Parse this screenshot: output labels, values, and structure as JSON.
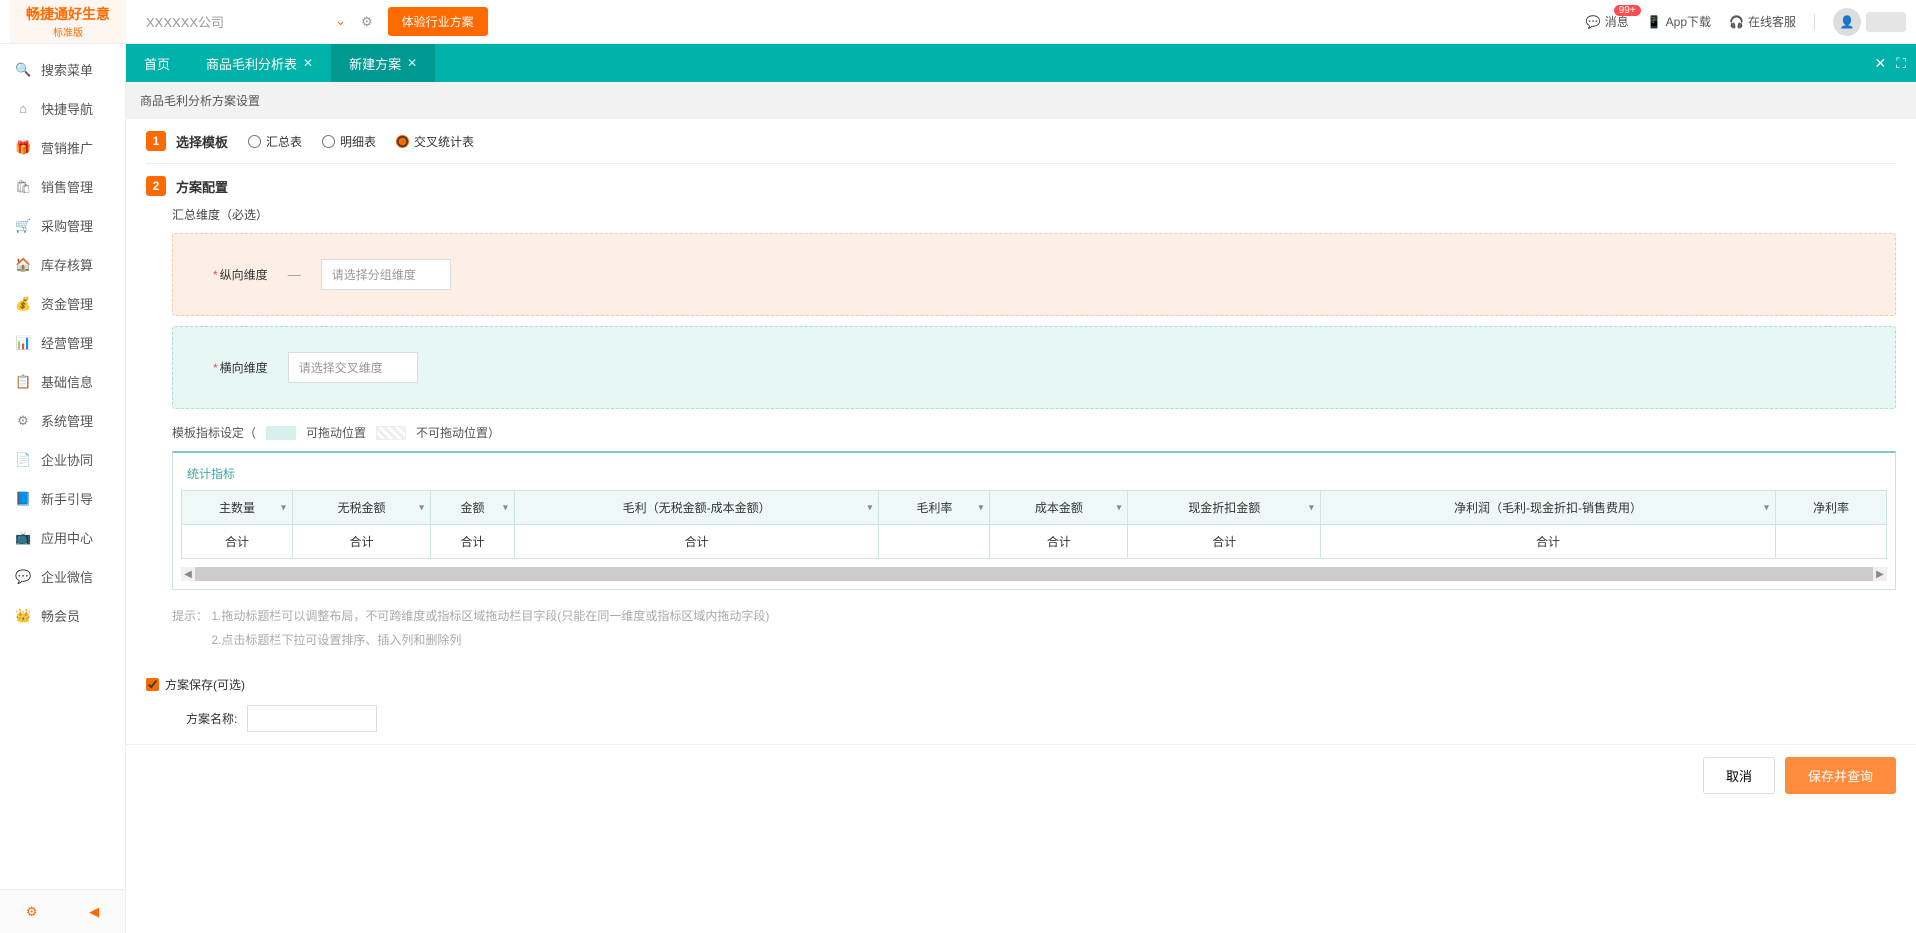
{
  "header": {
    "logo_text": "畅捷通好生意",
    "logo_sub": "标准版",
    "company": "XXXXXX公司",
    "try_btn": "体验行业方案",
    "msg_label": "消息",
    "msg_badge": "99+",
    "app_label": "App下载",
    "service_label": "在线客服"
  },
  "sidebar": {
    "items": [
      {
        "icon": "🔍",
        "label": "搜索菜单"
      },
      {
        "icon": "⌂",
        "label": "快捷导航"
      },
      {
        "icon": "🎁",
        "label": "营销推广"
      },
      {
        "icon": "🛍",
        "label": "销售管理"
      },
      {
        "icon": "🛒",
        "label": "采购管理"
      },
      {
        "icon": "🏠",
        "label": "库存核算"
      },
      {
        "icon": "💰",
        "label": "资金管理"
      },
      {
        "icon": "📊",
        "label": "经营管理"
      },
      {
        "icon": "📋",
        "label": "基础信息"
      },
      {
        "icon": "⚙",
        "label": "系统管理"
      },
      {
        "icon": "📄",
        "label": "企业协同"
      },
      {
        "icon": "📘",
        "label": "新手引导"
      },
      {
        "icon": "📺",
        "label": "应用中心"
      },
      {
        "icon": "💬",
        "label": "企业微信"
      },
      {
        "icon": "👑",
        "label": "畅会员"
      }
    ]
  },
  "tabs": {
    "items": [
      {
        "label": "首页",
        "closable": false,
        "active": false
      },
      {
        "label": "商品毛利分析表",
        "closable": true,
        "active": false
      },
      {
        "label": "新建方案",
        "closable": true,
        "active": true
      }
    ]
  },
  "breadcrumb": "商品毛利分析方案设置",
  "step1": {
    "num": "1",
    "label": "选择模板",
    "opts": [
      "汇总表",
      "明细表",
      "交叉统计表"
    ],
    "selected": 2
  },
  "step2": {
    "num": "2",
    "label": "方案配置",
    "sum_dim_title": "汇总维度（必选）",
    "v_label": "纵向维度",
    "v_placeholder": "请选择分组维度",
    "h_label": "横向维度",
    "h_placeholder": "请选择交叉维度",
    "tpl_label": "模板指标设定（",
    "drag_label": "可拖动位置",
    "nodrag_label": "不可拖动位置）",
    "stat_title": "统计指标",
    "columns": [
      "主数量",
      "无税金额",
      "金额",
      "毛利（无税金额-成本金额）",
      "毛利率",
      "成本金额",
      "现金折扣金额",
      "净利润（毛利-现金折扣-销售费用）",
      "净利率"
    ],
    "sum_row": "合计",
    "hint_label": "提示：",
    "hint1": "1.拖动标题栏可以调整布局，不可跨维度或指标区域拖动栏目字段(只能在同一维度或指标区域内拖动字段)",
    "hint2": "2.点击标题栏下拉可设置排序、插入列和删除列"
  },
  "save": {
    "chk_label": "方案保存(可选)",
    "name_label": "方案名称:"
  },
  "footer": {
    "cancel": "取消",
    "submit": "保存并查询"
  }
}
